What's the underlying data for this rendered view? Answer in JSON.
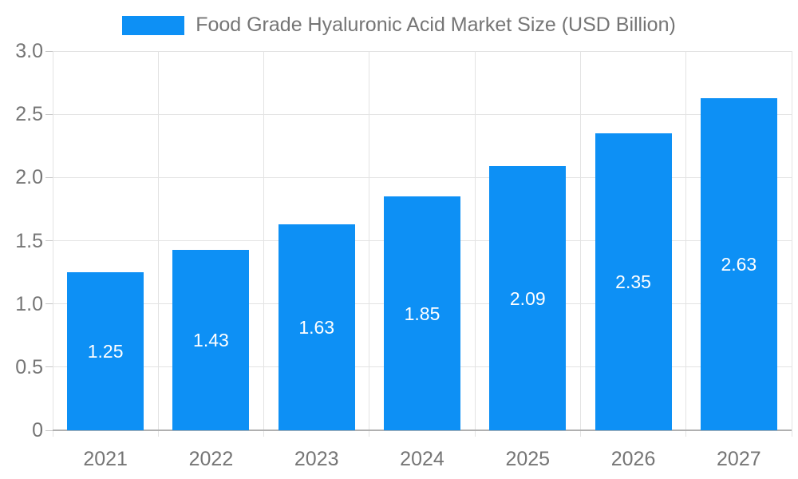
{
  "chart_data": {
    "type": "bar",
    "title": "Food Grade Hyaluronic Acid Market Size (USD Billion)",
    "categories": [
      "2021",
      "2022",
      "2023",
      "2024",
      "2025",
      "2026",
      "2027"
    ],
    "values": [
      1.25,
      1.43,
      1.63,
      1.85,
      2.09,
      2.35,
      2.63
    ],
    "data_labels": [
      "1.25",
      "1.43",
      "1.63",
      "1.85",
      "2.09",
      "2.35",
      "2.63"
    ],
    "xlabel": "",
    "ylabel": "",
    "ylim": [
      0,
      3.0
    ],
    "yticks": [
      "0",
      "0.5",
      "1.0",
      "1.5",
      "2.0",
      "2.5",
      "3.0"
    ],
    "grid": true,
    "legend_position": "top",
    "colors": {
      "bar": "#0d90f5",
      "grid": "#e3e3e3",
      "baseline": "#b0b0b0",
      "tick": "#c6c6c6",
      "text": "#757575",
      "data_label": "#ffffff",
      "background": "#ffffff"
    }
  }
}
